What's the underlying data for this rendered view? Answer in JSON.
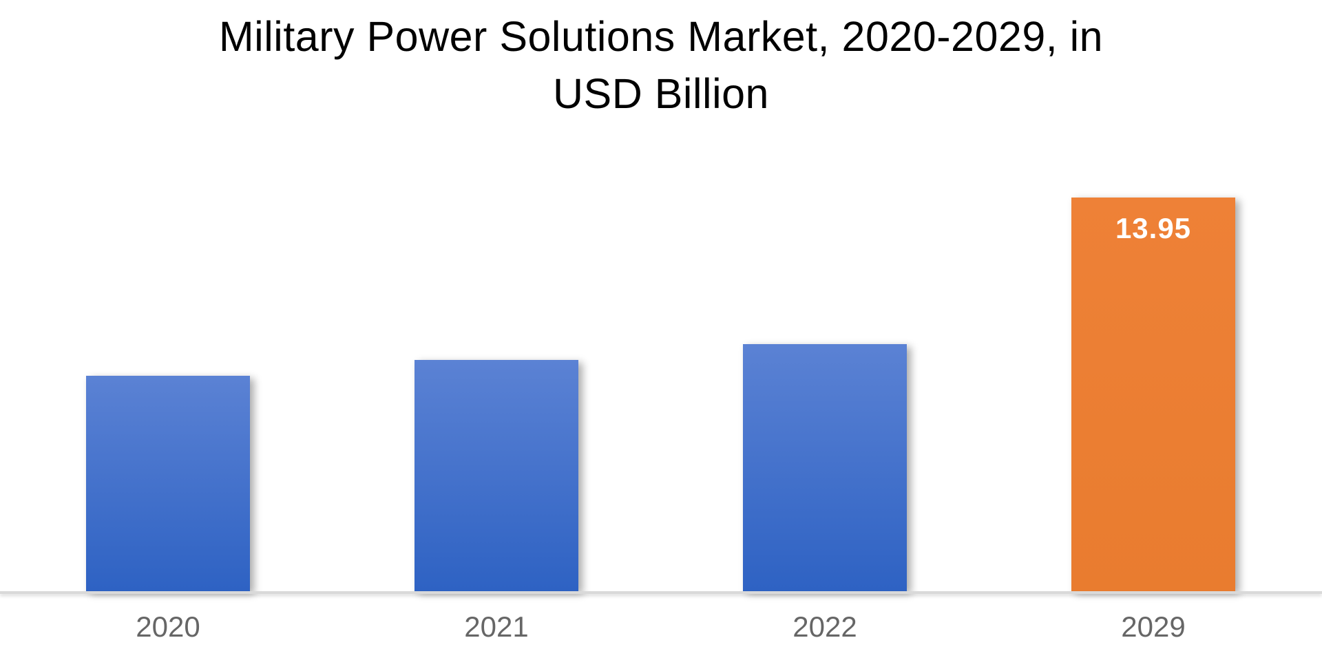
{
  "chart_data": {
    "type": "bar",
    "title": "Military Power Solutions Market, 2020-2029, in USD Billion",
    "title_lines": [
      "Military Power Solutions Market, 2020-2029, in",
      "USD Billion"
    ],
    "categories": [
      "2020",
      "2021",
      "2022",
      "2029"
    ],
    "values": [
      7.63,
      8.19,
      8.76,
      13.95
    ],
    "data_labels": [
      "",
      "",
      "",
      "13.95"
    ],
    "series_colors": [
      "blue",
      "blue",
      "blue",
      "orange"
    ],
    "xlabel": "",
    "ylabel": "",
    "ylim": [
      0,
      13.95
    ],
    "grid": false,
    "legend": false,
    "y_axis_visible": false,
    "colors": {
      "blue_top": "#5b82d4",
      "blue_bottom": "#2e62c3",
      "orange": "#ed7d31",
      "axis_line": "#d9d9d9",
      "tick_label": "#666666",
      "title": "#000000",
      "data_label": "#ffffff"
    }
  }
}
